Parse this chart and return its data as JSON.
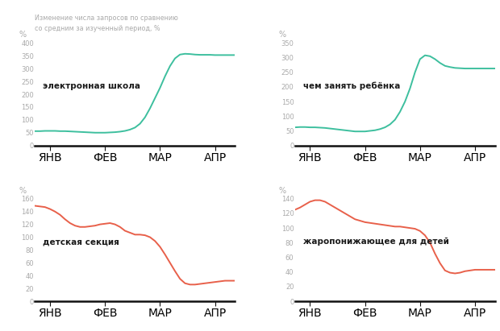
{
  "title_text": "Изменение числа запросов по сравнению\nсо средним за изученный период, %",
  "subtitle_color": "#aaaaaa",
  "background_color": "#ffffff",
  "line_color_green": "#3dbf9e",
  "line_color_red": "#e8604a",
  "label_color": "#1a1a1a",
  "tick_color": "#aaaaaa",
  "axis_color": "#111111",
  "plots": [
    {
      "title": "электронная школа",
      "color": "#3dbf9e",
      "ylabel": "%",
      "ylim": [
        0,
        400
      ],
      "yticks": [
        0,
        50,
        100,
        150,
        200,
        250,
        300,
        350,
        400
      ],
      "xtick_labels": [
        "ЯНВ",
        "ФЕВ",
        "МАР",
        "АПР"
      ],
      "x": [
        0,
        0.5,
        1,
        1.5,
        2,
        2.5,
        3,
        3.5,
        4,
        4.5,
        5,
        5.5,
        6,
        6.5,
        7,
        7.5,
        8,
        8.5,
        9,
        9.5,
        10,
        10.5,
        11,
        11.5,
        12,
        12.5,
        13,
        13.5,
        14,
        14.5,
        15,
        15.5,
        16,
        16.5,
        17,
        17.5,
        18,
        18.5,
        19,
        19.5,
        20
      ],
      "y": [
        56,
        56,
        57,
        57,
        57,
        56,
        56,
        55,
        54,
        53,
        52,
        51,
        50,
        50,
        50,
        51,
        52,
        54,
        57,
        62,
        70,
        85,
        110,
        145,
        185,
        225,
        270,
        310,
        340,
        355,
        358,
        357,
        355,
        354,
        354,
        354,
        353,
        353,
        353,
        353,
        353
      ]
    },
    {
      "title": "чем занять ребёнка",
      "color": "#3dbf9e",
      "ylabel": "%",
      "ylim": [
        0,
        350
      ],
      "yticks": [
        0,
        50,
        100,
        150,
        200,
        250,
        300,
        350
      ],
      "xtick_labels": [
        "ЯНВ",
        "ФЕВ",
        "МАР",
        "АПР"
      ],
      "x": [
        0,
        0.5,
        1,
        1.5,
        2,
        2.5,
        3,
        3.5,
        4,
        4.5,
        5,
        5.5,
        6,
        6.5,
        7,
        7.5,
        8,
        8.5,
        9,
        9.5,
        10,
        10.5,
        11,
        11.5,
        12,
        12.5,
        13,
        13.5,
        14,
        14.5,
        15,
        15.5,
        16,
        16.5,
        17,
        17.5,
        18,
        18.5,
        19,
        19.5,
        20
      ],
      "y": [
        62,
        63,
        63,
        62,
        62,
        61,
        60,
        58,
        56,
        54,
        52,
        50,
        48,
        48,
        48,
        50,
        52,
        56,
        62,
        72,
        88,
        115,
        150,
        195,
        250,
        295,
        308,
        305,
        295,
        282,
        272,
        268,
        265,
        264,
        263,
        263,
        263,
        263,
        263,
        263,
        263
      ]
    },
    {
      "title": "детская секция",
      "color": "#e8604a",
      "ylabel": "%",
      "ylim": [
        0,
        160
      ],
      "yticks": [
        0,
        20,
        40,
        60,
        80,
        100,
        120,
        140,
        160
      ],
      "xtick_labels": [
        "ЯНВ",
        "ФЕВ",
        "МАР",
        "АПР"
      ],
      "x": [
        0,
        0.5,
        1,
        1.5,
        2,
        2.5,
        3,
        3.5,
        4,
        4.5,
        5,
        5.5,
        6,
        6.5,
        7,
        7.5,
        8,
        8.5,
        9,
        9.5,
        10,
        10.5,
        11,
        11.5,
        12,
        12.5,
        13,
        13.5,
        14,
        14.5,
        15,
        15.5,
        16,
        16.5,
        17,
        17.5,
        18,
        18.5,
        19,
        19.5,
        20
      ],
      "y": [
        149,
        148,
        147,
        144,
        140,
        135,
        128,
        122,
        118,
        116,
        116,
        117,
        118,
        120,
        121,
        122,
        120,
        116,
        110,
        107,
        104,
        104,
        103,
        100,
        94,
        85,
        73,
        60,
        47,
        35,
        28,
        26,
        26,
        27,
        28,
        29,
        30,
        31,
        32,
        32,
        32
      ]
    },
    {
      "title": "жаропонижающее для детей",
      "color": "#e8604a",
      "ylabel": "%",
      "ylim": [
        0,
        140
      ],
      "yticks": [
        0,
        20,
        40,
        60,
        80,
        100,
        120,
        140
      ],
      "xtick_labels": [
        "ЯНВ",
        "ФЕВ",
        "МАР",
        "АПР"
      ],
      "x": [
        0,
        0.5,
        1,
        1.5,
        2,
        2.5,
        3,
        3.5,
        4,
        4.5,
        5,
        5.5,
        6,
        6.5,
        7,
        7.5,
        8,
        8.5,
        9,
        9.5,
        10,
        10.5,
        11,
        11.5,
        12,
        12.5,
        13,
        13.5,
        14,
        14.5,
        15,
        15.5,
        16,
        16.5,
        17,
        17.5,
        18,
        18.5,
        19,
        19.5,
        20
      ],
      "y": [
        125,
        128,
        132,
        136,
        138,
        138,
        136,
        132,
        128,
        124,
        120,
        116,
        112,
        110,
        108,
        107,
        106,
        105,
        104,
        103,
        102,
        102,
        101,
        100,
        99,
        96,
        90,
        80,
        65,
        52,
        42,
        39,
        38,
        39,
        41,
        42,
        43,
        43,
        43,
        43,
        43
      ]
    }
  ]
}
